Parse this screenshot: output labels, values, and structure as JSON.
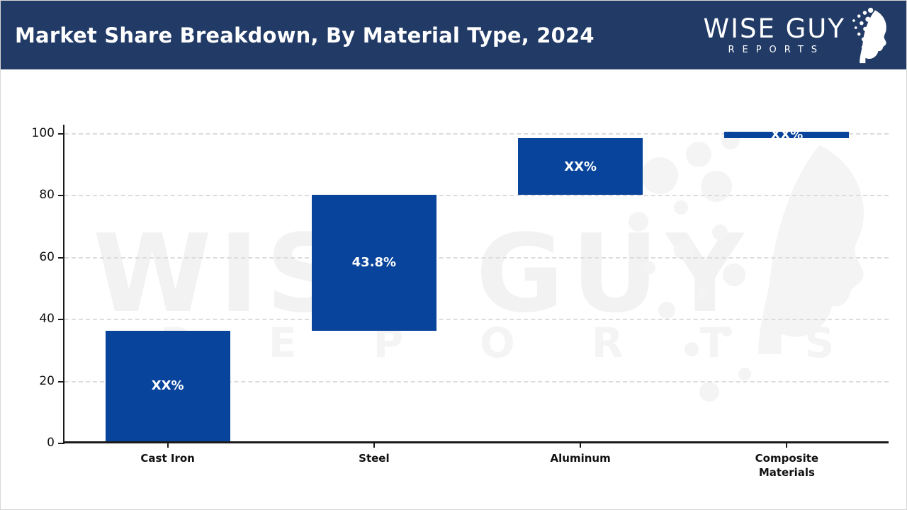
{
  "header": {
    "title": "Market Share Breakdown, By Material Type, 2024",
    "logo": {
      "line1": "WISE GUY",
      "line2": "REPORTS"
    }
  },
  "watermark": {
    "line1": "WISE GUY",
    "line2": "R E P O R T S"
  },
  "colors": {
    "header_bg": "#213a66",
    "bar": "#08449b",
    "bar_label": "#ffffff",
    "grid": "#dcdcdc",
    "axis": "#1a1a1a",
    "watermark": "#f2f2f2"
  },
  "chart_data": {
    "type": "bar",
    "subtype": "waterfall",
    "title": "Market Share Breakdown, By Material Type, 2024",
    "xlabel": "",
    "ylabel": "",
    "categories": [
      "Cast Iron",
      "Steel",
      "Aluminum",
      "Composite Materials"
    ],
    "segments": [
      {
        "category": "Cast Iron",
        "start": 0,
        "end": 35.8,
        "label": "XX%"
      },
      {
        "category": "Steel",
        "start": 35.8,
        "end": 79.6,
        "label": "43.8%"
      },
      {
        "category": "Aluminum",
        "start": 79.6,
        "end": 97.9,
        "label": "XX%"
      },
      {
        "category": "Composite Materials",
        "start": 97.9,
        "end": 100,
        "label": "XX%"
      }
    ],
    "yticks": [
      0,
      20,
      40,
      60,
      80,
      100
    ],
    "ylim": [
      0,
      103
    ],
    "grid": "horizontal-dashed",
    "legend": "none"
  }
}
